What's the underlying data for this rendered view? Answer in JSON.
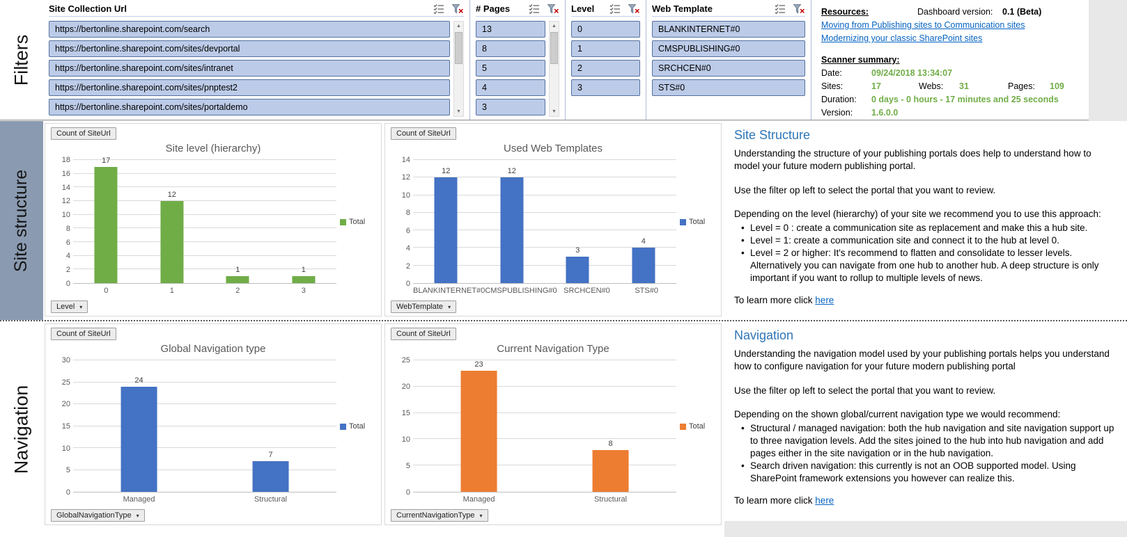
{
  "sections": {
    "filters": {
      "label": "Filters"
    },
    "site_structure": {
      "label": "Site structure"
    },
    "navigation": {
      "label": "Navigation"
    }
  },
  "icons": {
    "multi_select": "multi-select-icon",
    "clear_filter": "clear-filter-icon",
    "dropdown_caret": "▾",
    "scroll_up": "▲",
    "scroll_down": "▼"
  },
  "slicers": [
    {
      "title": "Site Collection Url",
      "items": [
        "https://bertonline.sharepoint.com/search",
        "https://bertonline.sharepoint.com/sites/devportal",
        "https://bertonline.sharepoint.com/sites/intranet",
        "https://bertonline.sharepoint.com/sites/pnptest2",
        "https://bertonline.sharepoint.com/sites/portaldemo"
      ]
    },
    {
      "title": "# Pages",
      "items": [
        "13",
        "8",
        "5",
        "4",
        "3"
      ]
    },
    {
      "title": "Level",
      "items": [
        "0",
        "1",
        "2",
        "3"
      ]
    },
    {
      "title": "Web Template",
      "items": [
        "BLANKINTERNET#0",
        "CMSPUBLISHING#0",
        "SRCHCEN#0",
        "STS#0"
      ]
    }
  ],
  "resources": {
    "heading": "Resources:",
    "version_label": "Dashboard version:",
    "version_value": "0.1 (Beta)",
    "links": [
      "Moving from Publishing sites to Communication sites",
      "Modernizing your classic SharePoint sites"
    ],
    "summary_heading": "Scanner summary:",
    "date_label": "Date:",
    "date_value": "09/24/2018 13:34:07",
    "sites_label": "Sites:",
    "sites_value": "17",
    "webs_label": "Webs:",
    "webs_value": "31",
    "pages_label": "Pages:",
    "pages_value": "109",
    "duration_label": "Duration:",
    "duration_value": "0 days - 0 hours - 17 minutes and 25 seconds",
    "scanner_version_label": "Version:",
    "scanner_version_value": "1.6.0.0"
  },
  "chart_data": [
    {
      "type": "bar",
      "title": "Site level (hierarchy)",
      "value_button": "Count of SiteUrl",
      "axis_button": "Level",
      "categories": [
        "0",
        "1",
        "2",
        "3"
      ],
      "values": [
        17,
        12,
        1,
        1
      ],
      "ylim": [
        0,
        18
      ],
      "ytick_step": 2,
      "legend": "Total",
      "color": "#70ad47",
      "grid": true,
      "legend_position": "right"
    },
    {
      "type": "bar",
      "title": "Used Web Templates",
      "value_button": "Count of SiteUrl",
      "axis_button": "WebTemplate",
      "categories": [
        "BLANKINTERNET#0",
        "CMSPUBLISHING#0",
        "SRCHCEN#0",
        "STS#0"
      ],
      "values": [
        12,
        12,
        3,
        4
      ],
      "ylim": [
        0,
        14
      ],
      "ytick_step": 2,
      "legend": "Total",
      "color": "#4472c4",
      "grid": true,
      "legend_position": "right"
    },
    {
      "type": "bar",
      "title": "Global Navigation type",
      "value_button": "Count of SiteUrl",
      "axis_button": "GlobalNavigationType",
      "categories": [
        "Managed",
        "Structural"
      ],
      "values": [
        24,
        7
      ],
      "ylim": [
        0,
        30
      ],
      "ytick_step": 5,
      "legend": "Total",
      "color": "#4472c4",
      "grid": true,
      "legend_position": "right"
    },
    {
      "type": "bar",
      "title": "Current Navigation Type",
      "value_button": "Count of SiteUrl",
      "axis_button": "CurrentNavigationType",
      "categories": [
        "Managed",
        "Structural"
      ],
      "values": [
        23,
        8
      ],
      "ylim": [
        0,
        25
      ],
      "ytick_step": 5,
      "legend": "Total",
      "color": "#ed7d31",
      "grid": true,
      "legend_position": "right"
    }
  ],
  "panels": {
    "site_structure": {
      "title": "Site Structure",
      "p1": "Understanding the structure of your publishing portals does help to understand how to model your future modern publishing portal.",
      "p2": "Use the filter op left to select the portal that you want to review.",
      "p3": "Depending on the level (hierarchy) of your site we recommend you to use this approach:",
      "bullets": [
        "Level = 0 : create a communication site as replacement and make this a hub site.",
        "Level = 1: create a communication site and connect it to the hub at level 0.",
        "Level = 2 or higher: It's recommend to flatten and consolidate to lesser levels. Alternatively you can navigate from one hub to another hub. A deep structure is only important if you want to rollup to multiple levels of news."
      ],
      "footer_text": "To learn more click ",
      "footer_link": "here"
    },
    "navigation": {
      "title": "Navigation",
      "p1": "Understanding the navigation model used by your publishing portals helps you understand how to configure navigation for your future modern publishing portal",
      "p2": "Use the filter op left to select the portal that you want to review.",
      "p3": "Depending on the shown global/current navigation type we would recommend:",
      "bullets": [
        "Structural / managed navigation: both the hub navigation and site navigation support up to three navigation levels. Add the sites joined to the hub into hub navigation and add pages either in the site navigation or in the hub navigation.",
        "Search driven navigation: this currently is not an OOB supported model. Using SharePoint framework extensions you however can realize this."
      ],
      "footer_text": "To learn more click ",
      "footer_link": "here"
    }
  },
  "colors": {
    "green": "#70ad47",
    "blue": "#4472c4",
    "orange": "#ed7d31",
    "heading_blue": "#2e75b6",
    "link_blue": "#0563c1",
    "band_blue_gray": "#8a9bb1",
    "slicer_item_fill": "#bccbe8"
  }
}
